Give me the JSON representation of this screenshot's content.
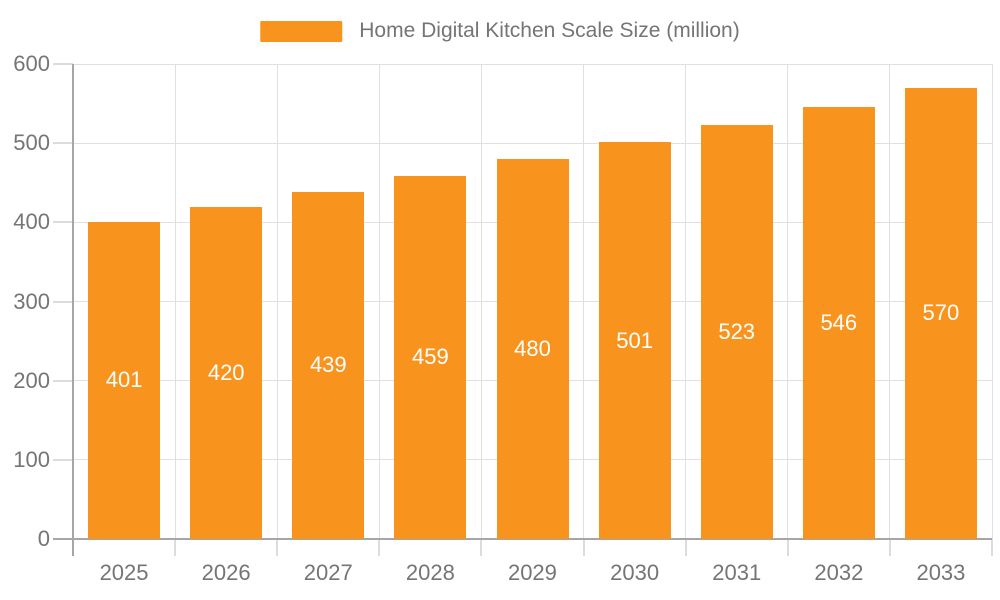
{
  "chart_data": {
    "type": "bar",
    "title": "Home Digital Kitchen Scale Size (million)",
    "series_name": "Home Digital Kitchen Scale Size (million)",
    "categories": [
      "2025",
      "2026",
      "2027",
      "2028",
      "2029",
      "2030",
      "2031",
      "2032",
      "2033"
    ],
    "values": [
      401,
      420,
      439,
      459,
      480,
      501,
      523,
      546,
      570
    ],
    "xlabel": "",
    "ylabel": "",
    "ylim": [
      0,
      600
    ],
    "yticks": [
      0,
      100,
      200,
      300,
      400,
      500,
      600
    ],
    "ytick_labels": [
      "0",
      "100",
      "200",
      "300",
      "400",
      "500",
      "600"
    ],
    "grid": true,
    "legend_position": "top-center",
    "bar_label_position": "inside-middle",
    "bar_color": "#F8941E",
    "bar_label_color": "#FFFFFF",
    "axis_color": "#A6A6A6",
    "grid_color": "#E0E0E0",
    "text_color": "#757575",
    "background_color": "#FFFFFF"
  }
}
